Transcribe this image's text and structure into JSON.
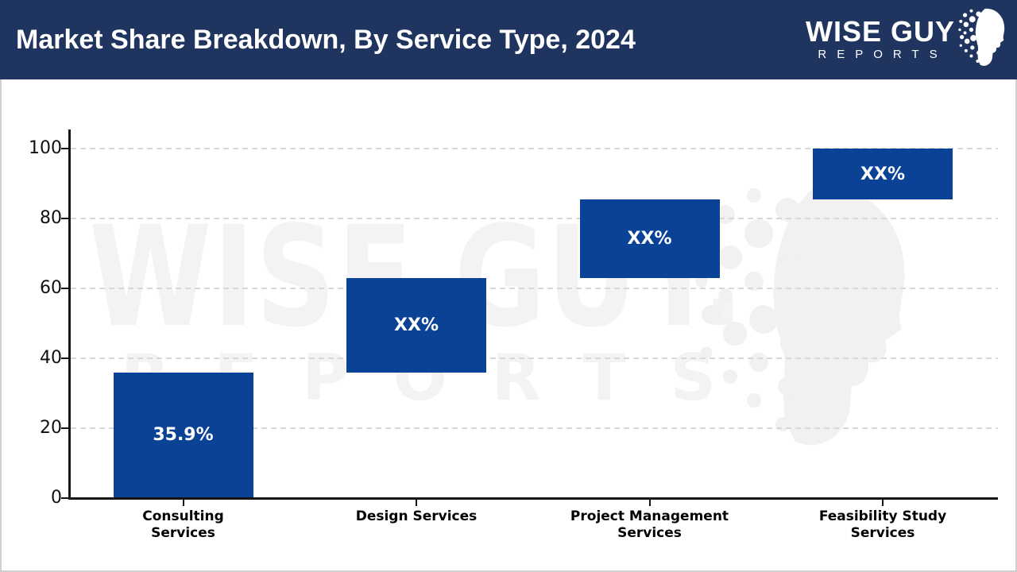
{
  "header": {
    "title": "Market Share Breakdown, By Service Type, 2024",
    "logo": {
      "name": "WISE GUY",
      "tagline": "REPORTS"
    }
  },
  "watermark": {
    "text": "WISE GUY.",
    "tagline": "REPORTS"
  },
  "colors": {
    "header_bg": "#1f3560",
    "bar": "#0a4296",
    "grid": "#d8d8d8",
    "watermark": "#f3f3f3",
    "axis": "#151515",
    "bar_label_text": "#ffffff"
  },
  "chart_data": {
    "type": "bar",
    "variant": "waterfall",
    "title": "Market Share Breakdown, By Service Type, 2024",
    "categories": [
      "Consulting Services",
      "Design Services",
      "Project Management Services",
      "Feasibility Study Services"
    ],
    "category_lines": [
      [
        "Consulting",
        "Services"
      ],
      [
        "Design Services"
      ],
      [
        "Project Management",
        "Services"
      ],
      [
        "Feasibility Study",
        "Services"
      ]
    ],
    "segments": [
      {
        "category": "Consulting Services",
        "start": 0,
        "end": 35.9,
        "label": "35.9%"
      },
      {
        "category": "Design Services",
        "start": 35.9,
        "end": 62.9,
        "label": "XX%"
      },
      {
        "category": "Project Management Services",
        "start": 62.9,
        "end": 85.4,
        "label": "XX%"
      },
      {
        "category": "Feasibility Study Services",
        "start": 85.4,
        "end": 100,
        "label": "XX%"
      }
    ],
    "yticks": [
      0,
      20,
      40,
      60,
      80,
      100
    ],
    "ylim": [
      0,
      105.5
    ],
    "xlabel": "",
    "ylabel": "",
    "grid": "horizontal dashed",
    "legend": null,
    "bar_color": "#0a4296",
    "value_label_color": "#ffffff"
  }
}
